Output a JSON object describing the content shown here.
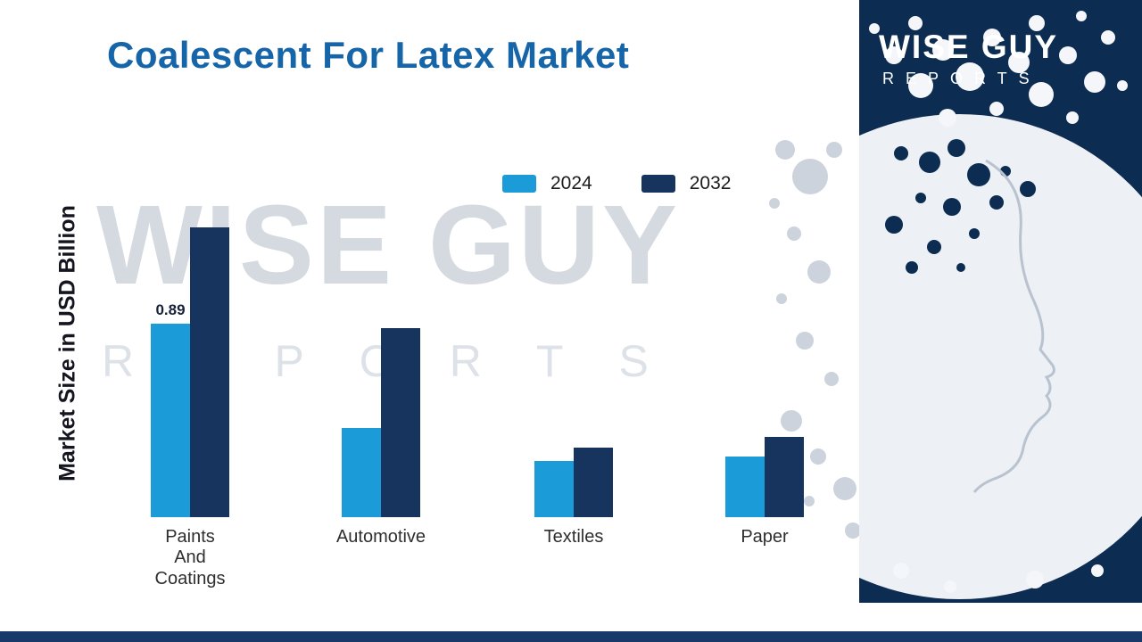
{
  "branding": {
    "logo_line1": "WISE GUY",
    "logo_line2": "REPORTS",
    "watermark_line1": "WISE GUY",
    "watermark_line2": "REPORTS",
    "panel_color": "#0c2c51",
    "accent_bar_color": "#173a6a",
    "title_color": "#1565a8"
  },
  "chart_data": {
    "type": "bar",
    "title": "Coalescent For Latex Market",
    "ylabel": "Market Size in USD Billion",
    "categories": [
      "Paints And Coatings",
      "Automotive",
      "Textiles",
      "Paper"
    ],
    "series": [
      {
        "name": "2024",
        "color": "#1b9bd7",
        "values": [
          0.89,
          0.41,
          0.26,
          0.28
        ],
        "data_labels": [
          "0.89",
          "",
          "",
          ""
        ]
      },
      {
        "name": "2032",
        "color": "#17345e",
        "values": [
          1.33,
          0.87,
          0.32,
          0.37
        ],
        "data_labels": [
          "",
          "",
          "",
          ""
        ]
      }
    ],
    "ylim": [
      0,
      1.4
    ],
    "grid": false,
    "legend_position": "top-center",
    "value_unit": "USD Billion"
  }
}
